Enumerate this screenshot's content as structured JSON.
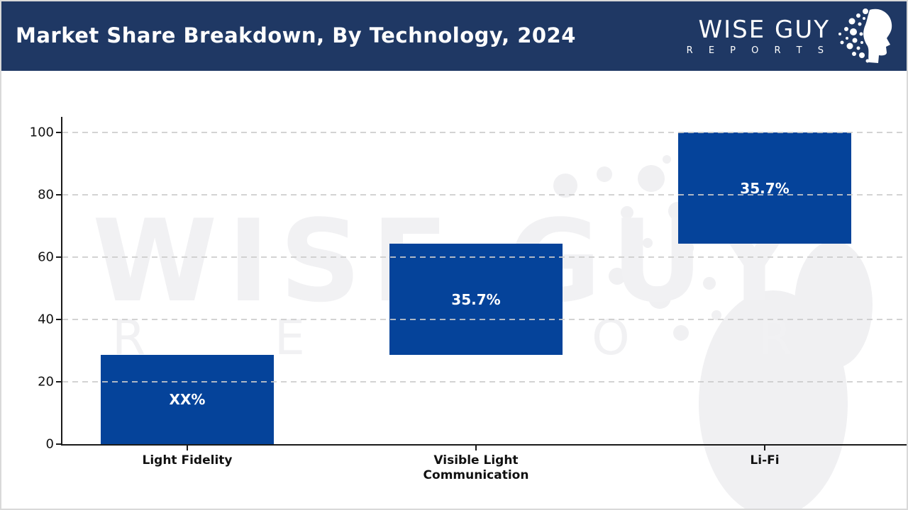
{
  "header": {
    "title": "Market Share Breakdown, By Technology, 2024",
    "logo": {
      "line1": "WISE GUY",
      "line2": "R E P O R T S",
      "face_icon": "dotted-head-profile"
    }
  },
  "watermark": {
    "line1": "WISE GUY",
    "line2": "R E P O R T S"
  },
  "colors": {
    "header_bg": "#1f3864",
    "bar_fill": "#05439a",
    "bar_label_text": "#ffffff",
    "gridline": "#cbcbcb",
    "axis": "#1a1a1a",
    "watermark": "#f1f1f3",
    "figure_border": "#d9d9d9"
  },
  "chart_data": {
    "type": "bar",
    "subtype": "floating-breakdown-bars",
    "title": "Market Share Breakdown, By Technology, 2024",
    "categories": [
      "Light Fidelity",
      "Visible Light\nCommunication",
      "Li-Fi"
    ],
    "bars": [
      {
        "category": "Light Fidelity",
        "start": 0,
        "end": 28.6,
        "label": "XX%"
      },
      {
        "category": "Visible Light\nCommunication",
        "start": 28.6,
        "end": 64.3,
        "label": "35.7%"
      },
      {
        "category": "Li-Fi",
        "start": 64.3,
        "end": 100,
        "label": "35.7%"
      }
    ],
    "xlabel": "",
    "ylabel": "",
    "ylim": [
      0,
      100
    ],
    "yticks": [
      0,
      20,
      40,
      60,
      80,
      100
    ],
    "grid": "horizontal dashed, drawn over bars",
    "legend": "none"
  }
}
